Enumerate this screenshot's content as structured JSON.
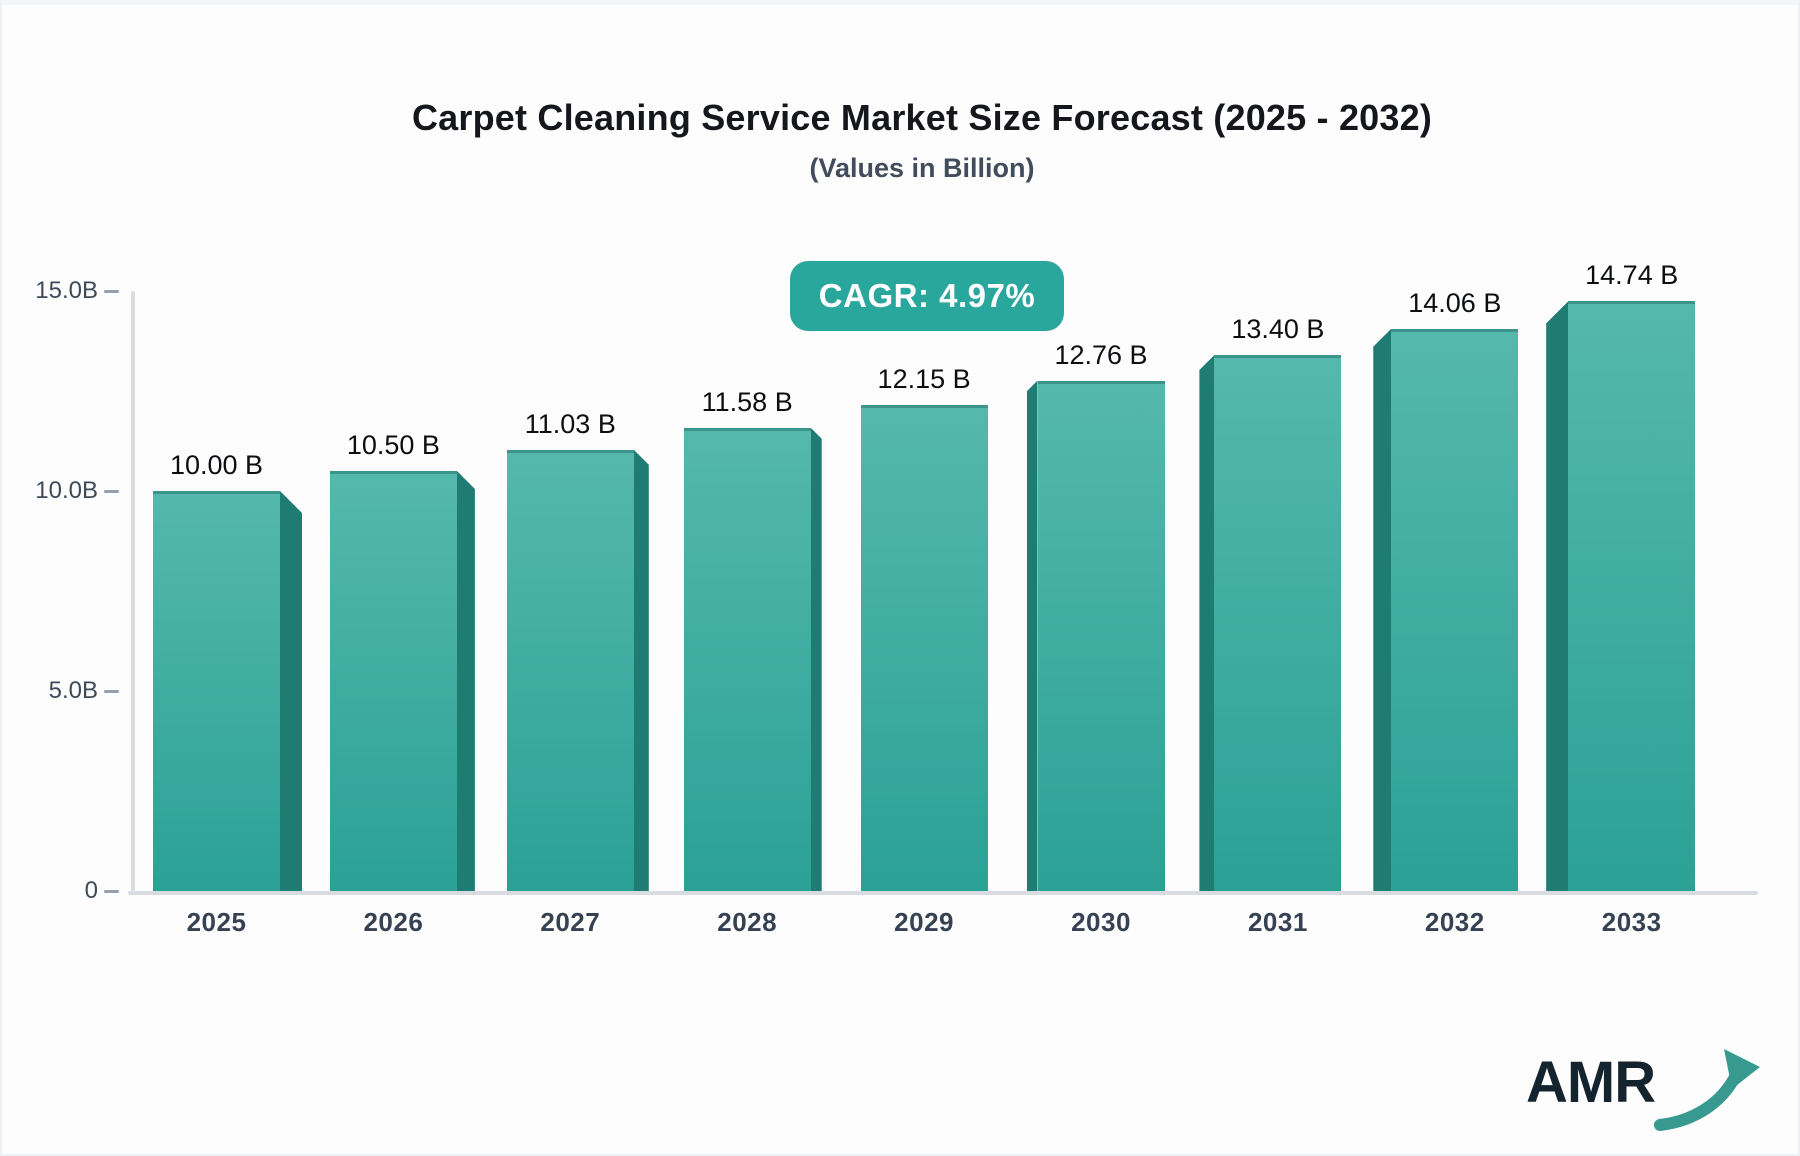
{
  "header": {
    "title": "Carpet Cleaning Service Market Size Forecast (2025 - 2032)",
    "subtitle": "(Values in Billion)"
  },
  "badge": {
    "label": "CAGR: 4.97%"
  },
  "logo": {
    "text": "AMR",
    "icon": "growth-arrow-icon"
  },
  "colors": {
    "bar_face_top": "#55b8ac",
    "bar_face_bottom": "#2ba196",
    "bar_side": "#1f7c72",
    "badge_background": "#2aa79c",
    "badge_text": "#ffffff",
    "axis_line": "#d8dbe0",
    "tick_dash": "#97a1ab",
    "ytick_text": "#3e4a59",
    "xtick_text": "#364252",
    "value_text": "#0c0e10",
    "logo_text": "#14242e",
    "logo_arrow": "#37998f"
  },
  "chart_data": {
    "type": "bar",
    "title": "Carpet Cleaning Service Market Size Forecast (2025 - 2032)",
    "subtitle": "(Values in Billion)",
    "annotation": "CAGR: 4.97%",
    "categories": [
      "2025",
      "2026",
      "2027",
      "2028",
      "2029",
      "2030",
      "2031",
      "2032",
      "2033"
    ],
    "values": [
      10.0,
      10.5,
      11.03,
      11.58,
      12.15,
      12.76,
      13.4,
      14.06,
      14.74
    ],
    "value_labels": [
      "10.00 B",
      "10.50 B",
      "11.03 B",
      "11.58 B",
      "12.15 B",
      "12.76 B",
      "13.40 B",
      "14.06 B",
      "14.74 B"
    ],
    "unit": "Billion",
    "xlabel": "",
    "ylabel": "",
    "ylim": [
      0,
      15.5
    ],
    "yticks": [
      {
        "label": "15.0B",
        "value": 15.0
      },
      {
        "label": "10.0B",
        "value": 10.0
      },
      {
        "label": "5.0B",
        "value": 5.0
      },
      {
        "label": "0",
        "value": 0
      }
    ],
    "grid": false,
    "legend_position": "none",
    "style_3d": true
  }
}
